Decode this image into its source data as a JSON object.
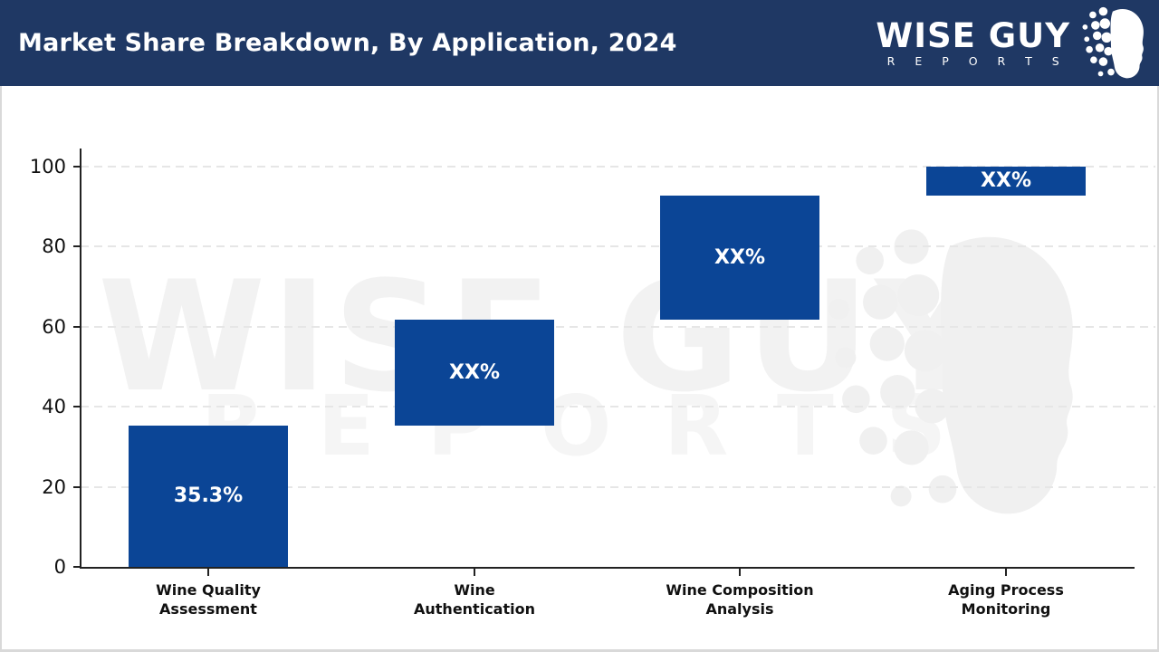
{
  "header": {
    "title": "Market Share Breakdown, By Application, 2024",
    "logo": {
      "line1": "WISE GUY",
      "line2": "R E P O R T S"
    }
  },
  "watermark": {
    "line1": "WISE GUY",
    "line2": "REPORTS"
  },
  "colors": {
    "header_bg": "#1f3864",
    "bar": "#0b4596",
    "grid": "#e6e6e6",
    "axis": "#222222",
    "bar_label_text": "#ffffff",
    "watermark": "#f2f2f2",
    "frame_border": "#d9d9d9"
  },
  "chart_data": {
    "type": "bar",
    "subtype": "waterfall",
    "title": "Market Share Breakdown, By Application, 2024",
    "categories": [
      [
        "Wine Quality",
        "Assessment"
      ],
      [
        "Wine",
        "Authentication"
      ],
      [
        "Wine Composition",
        "Analysis"
      ],
      [
        "Aging Process",
        "Monitoring"
      ]
    ],
    "category_slugs": [
      "wine-quality-assessment",
      "wine-authentication",
      "wine-composition-analysis",
      "aging-process-monitoring"
    ],
    "segments": [
      {
        "start": 0,
        "end": 35.3,
        "label": "35.3%"
      },
      {
        "start": 35.3,
        "end": 61.7,
        "label": "XX%"
      },
      {
        "start": 61.7,
        "end": 92.8,
        "label": "XX%"
      },
      {
        "start": 92.8,
        "end": 100,
        "label": "XX%"
      }
    ],
    "xlabel": "",
    "ylabel": "",
    "ylim": [
      0,
      100
    ],
    "yticks": [
      0,
      20,
      40,
      60,
      80,
      100
    ],
    "grid": "horizontal-dashed",
    "legend": "none"
  }
}
